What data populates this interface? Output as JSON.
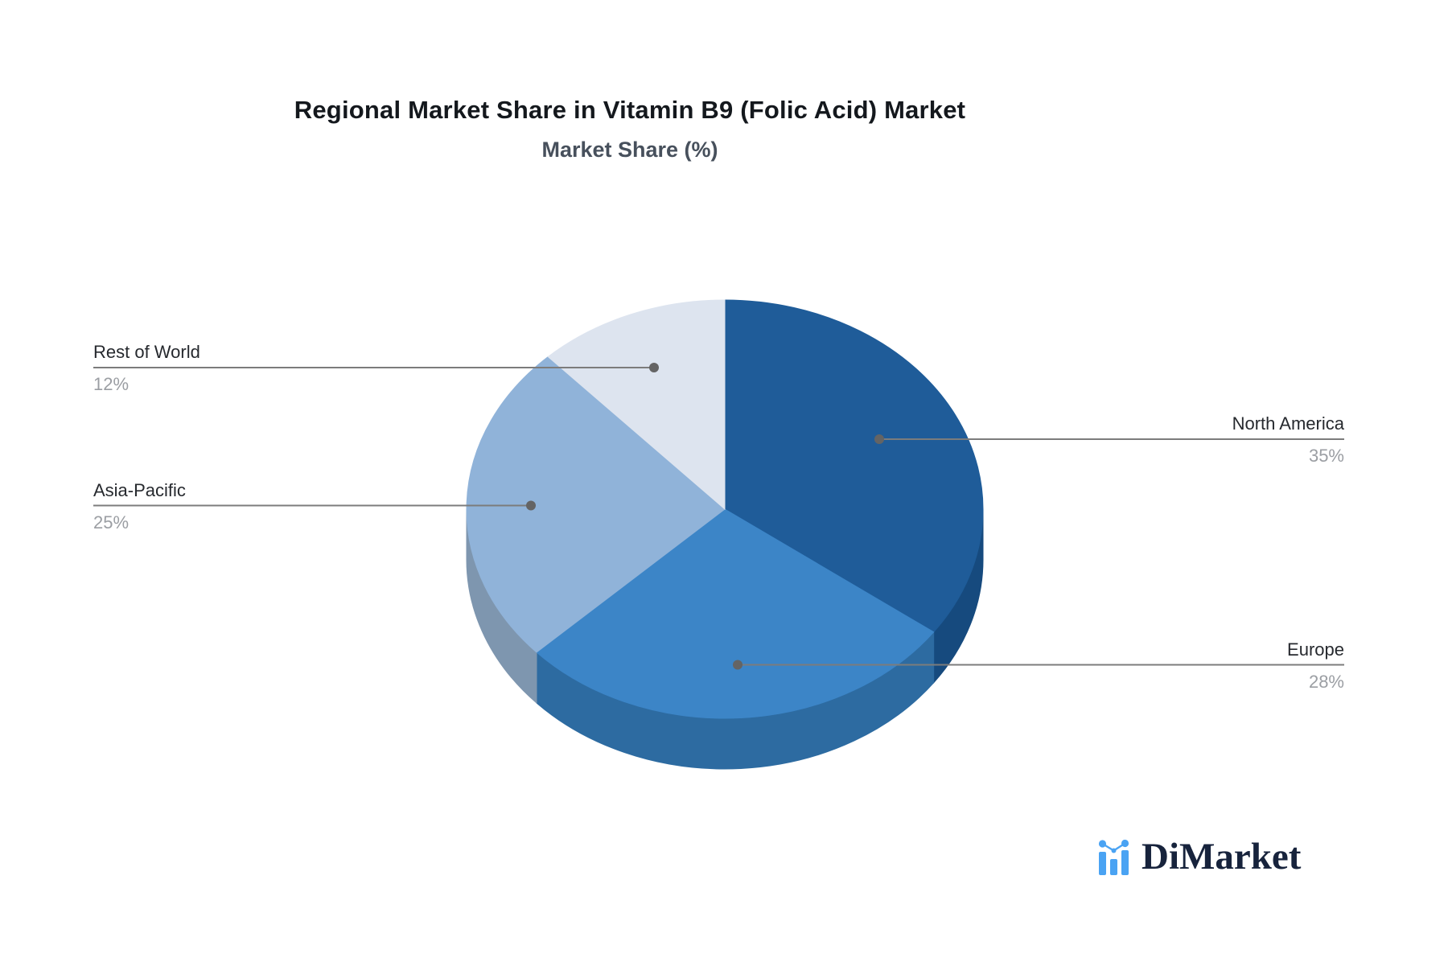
{
  "chart": {
    "title": "Regional Market Share in Vitamin B9 (Folic Acid) Market",
    "subtitle": "Market Share (%)"
  },
  "chart_data": {
    "type": "pie",
    "style": "3d",
    "title": "Regional Market Share in Vitamin B9 (Folic Acid) Market",
    "subtitle": "Market Share (%)",
    "unit": "%",
    "categories": [
      "North America",
      "Europe",
      "Asia-Pacific",
      "Rest of World"
    ],
    "values": [
      35,
      28,
      25,
      12
    ],
    "data_labels": [
      "35%",
      "28%",
      "25%",
      "12%"
    ],
    "colors": [
      "#1f5c99",
      "#3c85c7",
      "#90b3d9",
      "#dde4ef"
    ],
    "depth_colors": [
      "#164a7e",
      "#2d6ba1",
      "#7e96af",
      "#c3ceda"
    ],
    "start_angle_deg": 0,
    "direction": "clockwise",
    "legend": "none",
    "leader_line_color": "#7c7c7c",
    "leader_dot_color": "#646464"
  },
  "labels": {
    "north_america": {
      "name": "North America",
      "pct": "35%"
    },
    "europe": {
      "name": "Europe",
      "pct": "28%"
    },
    "asia_pacific": {
      "name": "Asia-Pacific",
      "pct": "25%"
    },
    "rest_of_world": {
      "name": "Rest of World",
      "pct": "12%"
    }
  },
  "logo": {
    "brand": "DiMarket"
  }
}
